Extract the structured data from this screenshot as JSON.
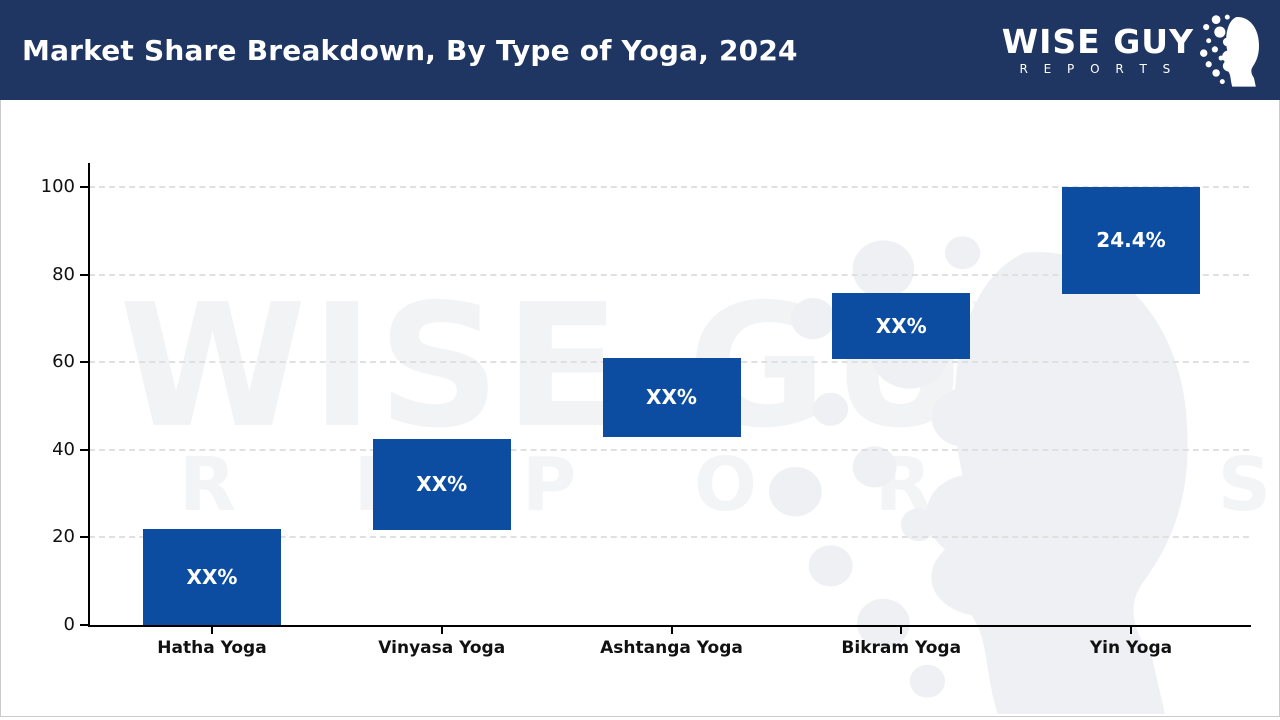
{
  "header": {
    "title": "Market Share Breakdown, By Type of Yoga, 2024",
    "brand": {
      "name": "WISE GUY",
      "sub": "R E P O R T S"
    }
  },
  "watermark": {
    "name": "WISE GUY",
    "sub": "R E P O R T S"
  },
  "chart_data": {
    "type": "bar",
    "variant": "waterfall",
    "title": "Market Share Breakdown, By Type of Yoga, 2024",
    "categories": [
      "Hatha Yoga",
      "Vinyasa Yoga",
      "Ashtanga Yoga",
      "Bikram Yoga",
      "Yin Yoga"
    ],
    "segments": [
      {
        "category": "Hatha Yoga",
        "start": 0,
        "end": 22,
        "label": "XX%"
      },
      {
        "category": "Vinyasa Yoga",
        "start": 21.7,
        "end": 42.5,
        "label": "XX%"
      },
      {
        "category": "Ashtanga Yoga",
        "start": 42.9,
        "end": 61,
        "label": "XX%"
      },
      {
        "category": "Bikram Yoga",
        "start": 60.8,
        "end": 75.8,
        "label": "XX%"
      },
      {
        "category": "Yin Yoga",
        "start": 75.6,
        "end": 100,
        "label": "24.4%"
      }
    ],
    "yticks": [
      0,
      20,
      40,
      60,
      80,
      100
    ],
    "ylim": [
      0,
      105
    ],
    "xlabel": "",
    "ylabel": "",
    "grid": "horizontal-dashed",
    "legend": "none",
    "bar_color": "#0d4da1",
    "bar_label_color": "#ffffff"
  },
  "colors": {
    "header_bg": "#1f3562",
    "bar": "#0d4da1",
    "grid": "#e0e0e0",
    "axis": "#000000",
    "watermark": "#f2f3f5",
    "card_border": "#cbcbcb"
  }
}
